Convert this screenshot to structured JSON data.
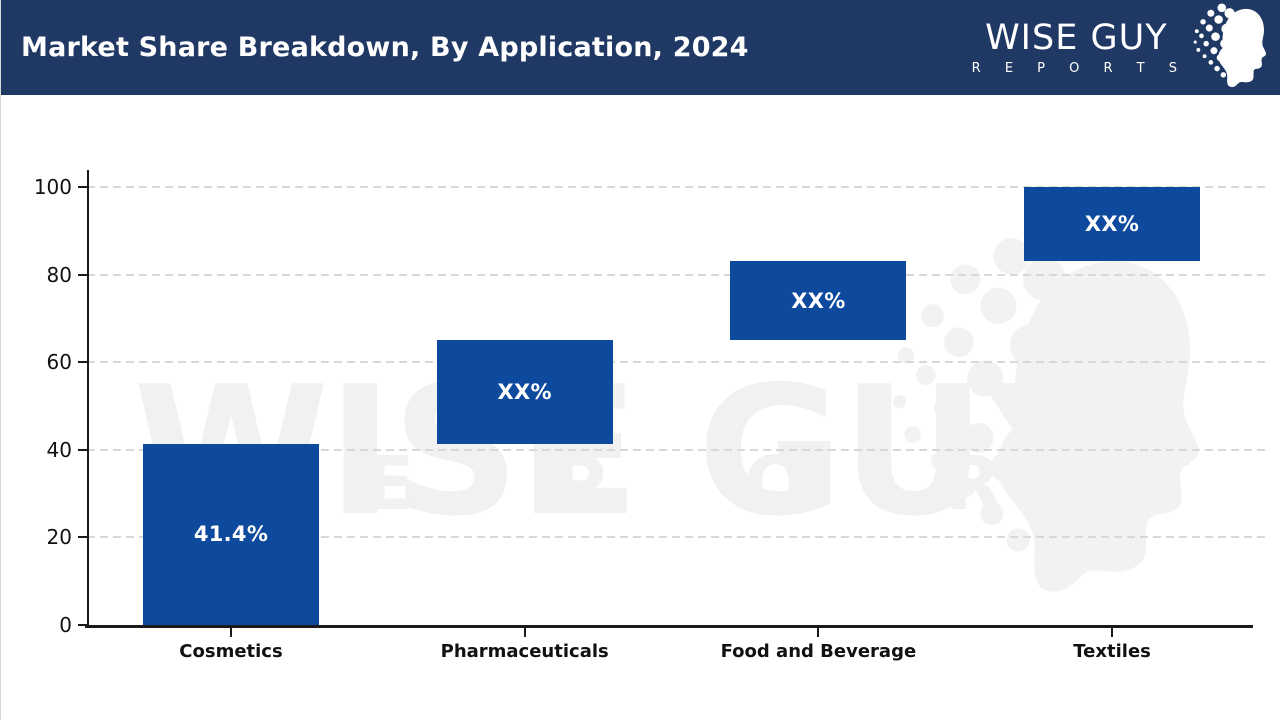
{
  "header": {
    "title": "Market Share Breakdown, By Application, 2024",
    "bg_color": "#203864",
    "logo": {
      "line1": "WISE GUY",
      "line2": "R E P O R T S"
    }
  },
  "watermark": {
    "line1": "WISE GUY",
    "line2": "R E P O R T S",
    "color": "#f1f1f1"
  },
  "chart_data": {
    "type": "bar",
    "subtype": "waterfall",
    "title": "Market Share Breakdown, By Application, 2024",
    "categories": [
      "Cosmetics",
      "Pharmaceuticals",
      "Food and Beverage",
      "Textiles"
    ],
    "segments": [
      {
        "category": "Cosmetics",
        "start": 0,
        "end": 41.4,
        "label": "41.4%"
      },
      {
        "category": "Pharmaceuticals",
        "start": 41.4,
        "end": 65,
        "label": "XX%"
      },
      {
        "category": "Food and Beverage",
        "start": 65,
        "end": 83,
        "label": "XX%"
      },
      {
        "category": "Textiles",
        "start": 83,
        "end": 100,
        "label": "XX%"
      }
    ],
    "xlabel": "",
    "ylabel": "",
    "yticks": [
      0,
      20,
      40,
      60,
      80,
      100
    ],
    "ylim": [
      0,
      104
    ],
    "grid": true,
    "grid_style": "dashed",
    "legend": "none",
    "bar_color": "#0d4a9e",
    "bar_label_color": "#ffffff",
    "axis_color": "#1a1a1a",
    "gridline_color": "#d8d8d8"
  }
}
